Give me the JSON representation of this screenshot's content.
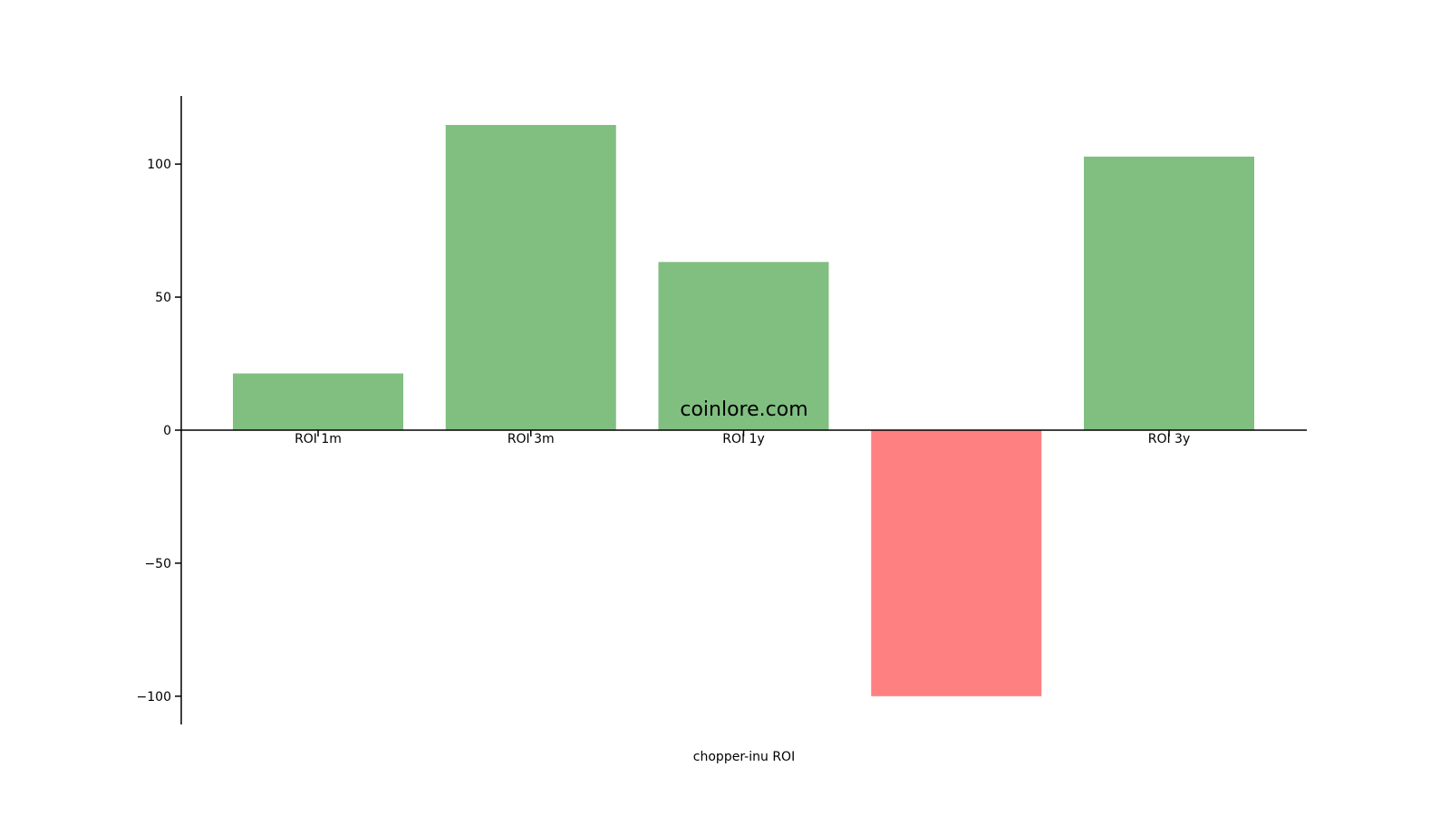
{
  "figure": {
    "background": "#ffffff",
    "watermark": {
      "text": "coinlore.com",
      "color": "#47724f"
    }
  },
  "chart_data": {
    "type": "bar",
    "title": "",
    "xlabel": "chopper-inu ROI",
    "ylabel": "",
    "categories": [
      "ROI 1m",
      "ROI 3m",
      "ROI 1y",
      "",
      "ROI 3y"
    ],
    "values": [
      21.3,
      114.7,
      63.2,
      -100,
      102.8
    ],
    "bar_colors": [
      "#80bf80",
      "#80bf80",
      "#80bf80",
      "#ff8080",
      "#80bf80"
    ],
    "positive_color": "#80bf80",
    "negative_color": "#ff8080",
    "axis_color": "#000000",
    "ylim": [
      -110.6,
      125.6
    ],
    "yticks": [
      100,
      50,
      0,
      -50,
      -100
    ],
    "ytick_labels": [
      "100",
      "50",
      "0",
      "−50",
      "−100"
    ],
    "grid": false,
    "legend": null
  }
}
